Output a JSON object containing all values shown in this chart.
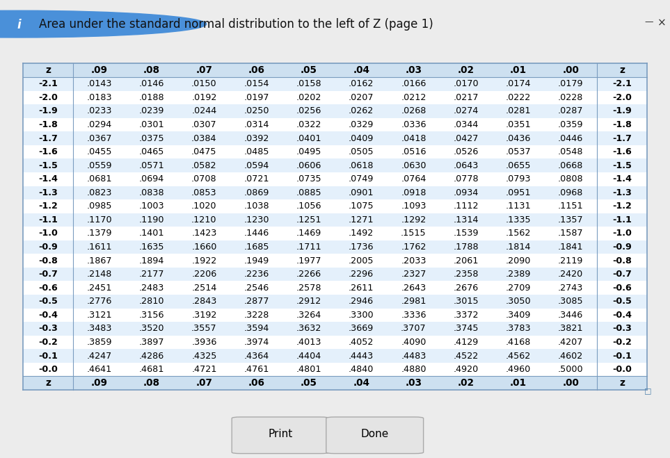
{
  "title": "Area under the standard normal distribution to the left of Z (page 1)",
  "col_headers": [
    ".09",
    ".08",
    ".07",
    ".06",
    ".05",
    ".04",
    ".03",
    ".02",
    ".01",
    ".00"
  ],
  "row_labels": [
    "-2.1",
    "-2.0",
    "-1.9",
    "-1.8",
    "-1.7",
    "-1.6",
    "-1.5",
    "-1.4",
    "-1.3",
    "-1.2",
    "-1.1",
    "-1.0",
    "-0.9",
    "-0.8",
    "-0.7",
    "-0.6",
    "-0.5",
    "-0.4",
    "-0.3",
    "-0.2",
    "-0.1",
    "-0.0"
  ],
  "table_data": [
    [
      ".0143",
      ".0146",
      ".0150",
      ".0154",
      ".0158",
      ".0162",
      ".0166",
      ".0170",
      ".0174",
      ".0179"
    ],
    [
      ".0183",
      ".0188",
      ".0192",
      ".0197",
      ".0202",
      ".0207",
      ".0212",
      ".0217",
      ".0222",
      ".0228"
    ],
    [
      ".0233",
      ".0239",
      ".0244",
      ".0250",
      ".0256",
      ".0262",
      ".0268",
      ".0274",
      ".0281",
      ".0287"
    ],
    [
      ".0294",
      ".0301",
      ".0307",
      ".0314",
      ".0322",
      ".0329",
      ".0336",
      ".0344",
      ".0351",
      ".0359"
    ],
    [
      ".0367",
      ".0375",
      ".0384",
      ".0392",
      ".0401",
      ".0409",
      ".0418",
      ".0427",
      ".0436",
      ".0446"
    ],
    [
      ".0455",
      ".0465",
      ".0475",
      ".0485",
      ".0495",
      ".0505",
      ".0516",
      ".0526",
      ".0537",
      ".0548"
    ],
    [
      ".0559",
      ".0571",
      ".0582",
      ".0594",
      ".0606",
      ".0618",
      ".0630",
      ".0643",
      ".0655",
      ".0668"
    ],
    [
      ".0681",
      ".0694",
      ".0708",
      ".0721",
      ".0735",
      ".0749",
      ".0764",
      ".0778",
      ".0793",
      ".0808"
    ],
    [
      ".0823",
      ".0838",
      ".0853",
      ".0869",
      ".0885",
      ".0901",
      ".0918",
      ".0934",
      ".0951",
      ".0968"
    ],
    [
      ".0985",
      ".1003",
      ".1020",
      ".1038",
      ".1056",
      ".1075",
      ".1093",
      ".1112",
      ".1131",
      ".1151"
    ],
    [
      ".1170",
      ".1190",
      ".1210",
      ".1230",
      ".1251",
      ".1271",
      ".1292",
      ".1314",
      ".1335",
      ".1357"
    ],
    [
      ".1379",
      ".1401",
      ".1423",
      ".1446",
      ".1469",
      ".1492",
      ".1515",
      ".1539",
      ".1562",
      ".1587"
    ],
    [
      ".1611",
      ".1635",
      ".1660",
      ".1685",
      ".1711",
      ".1736",
      ".1762",
      ".1788",
      ".1814",
      ".1841"
    ],
    [
      ".1867",
      ".1894",
      ".1922",
      ".1949",
      ".1977",
      ".2005",
      ".2033",
      ".2061",
      ".2090",
      ".2119"
    ],
    [
      ".2148",
      ".2177",
      ".2206",
      ".2236",
      ".2266",
      ".2296",
      ".2327",
      ".2358",
      ".2389",
      ".2420"
    ],
    [
      ".2451",
      ".2483",
      ".2514",
      ".2546",
      ".2578",
      ".2611",
      ".2643",
      ".2676",
      ".2709",
      ".2743"
    ],
    [
      ".2776",
      ".2810",
      ".2843",
      ".2877",
      ".2912",
      ".2946",
      ".2981",
      ".3015",
      ".3050",
      ".3085"
    ],
    [
      ".3121",
      ".3156",
      ".3192",
      ".3228",
      ".3264",
      ".3300",
      ".3336",
      ".3372",
      ".3409",
      ".3446"
    ],
    [
      ".3483",
      ".3520",
      ".3557",
      ".3594",
      ".3632",
      ".3669",
      ".3707",
      ".3745",
      ".3783",
      ".3821"
    ],
    [
      ".3859",
      ".3897",
      ".3936",
      ".3974",
      ".4013",
      ".4052",
      ".4090",
      ".4129",
      ".4168",
      ".4207"
    ],
    [
      ".4247",
      ".4286",
      ".4325",
      ".4364",
      ".4404",
      ".4443",
      ".4483",
      ".4522",
      ".4562",
      ".4602"
    ],
    [
      ".4641",
      ".4681",
      ".4721",
      ".4761",
      ".4801",
      ".4840",
      ".4880",
      ".4920",
      ".4960",
      ".5000"
    ]
  ],
  "header_bg": "#cde0f0",
  "odd_row_bg": "#e4f0fb",
  "even_row_bg": "#ffffff",
  "outer_bg": "#eef5fb",
  "title_bg": "#d8eaf8",
  "button_color": "#e4e4e4",
  "window_bg": "#ececec",
  "border_color": "#7a9cbf",
  "line_color": "#7a9cbf",
  "font_size": 9.2,
  "header_font_size": 9.8
}
